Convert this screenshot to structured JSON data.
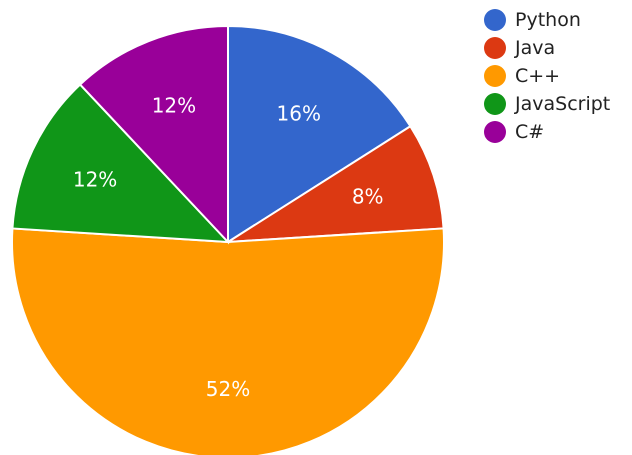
{
  "chart_data": {
    "type": "pie",
    "categories": [
      "Python",
      "Java",
      "C++",
      "JavaScript",
      "C#"
    ],
    "values": [
      16,
      8,
      52,
      12,
      12
    ],
    "value_labels": [
      "16%",
      "8%",
      "52%",
      "12%",
      "12%"
    ],
    "colors": [
      "#3366cc",
      "#dc3912",
      "#ff9900",
      "#109618",
      "#990099"
    ],
    "slice_border_color": "#ffffff",
    "start_angle_deg": 0,
    "direction": "clockwise",
    "legend": {
      "placement": "top-right",
      "entries": [
        "Python",
        "Java",
        "C++",
        "JavaScript",
        "C#"
      ]
    },
    "title": ""
  }
}
